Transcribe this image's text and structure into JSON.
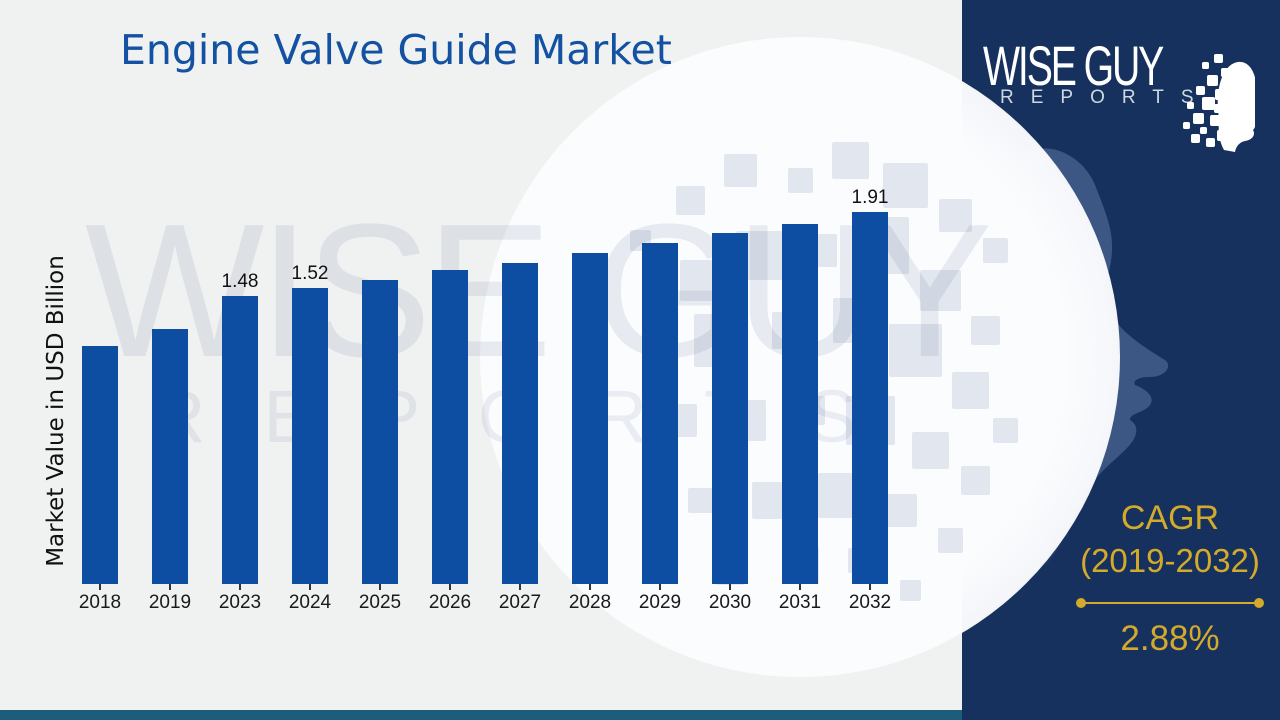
{
  "page": {
    "background_color": "#f0f1f1",
    "bottom_bar_color": "#1d5c7a",
    "panel_color": "#16315e"
  },
  "header": {
    "title": "Engine Valve Guide Market",
    "title_color": "#1351a2"
  },
  "watermark": {
    "line1": "WISE GUY",
    "line2": "REPORTS"
  },
  "logo": {
    "line1": "WISE GUY",
    "line2": "REPORTS"
  },
  "cagr": {
    "label": "CAGR",
    "range": "(2019-2032)",
    "value": "2.88%",
    "color": "#d4aa2b"
  },
  "chart_data": {
    "type": "bar",
    "title": "Engine Valve Guide Market",
    "xlabel": "",
    "ylabel": "Market Value in USD Billion",
    "unit": "USD Billion",
    "categories": [
      "2018",
      "2019",
      "2023",
      "2024",
      "2025",
      "2026",
      "2027",
      "2028",
      "2029",
      "2030",
      "2031",
      "2032"
    ],
    "values": [
      1.22,
      1.31,
      1.48,
      1.52,
      1.56,
      1.61,
      1.65,
      1.7,
      1.75,
      1.8,
      1.85,
      1.91
    ],
    "data_labels": [
      null,
      null,
      "1.48",
      "1.52",
      null,
      null,
      null,
      null,
      null,
      null,
      null,
      "1.91"
    ],
    "ylim": [
      0,
      2.05
    ],
    "grid": false,
    "legend": null,
    "bar_color": "#0d4da2",
    "label_color": "#1a1a1a"
  }
}
